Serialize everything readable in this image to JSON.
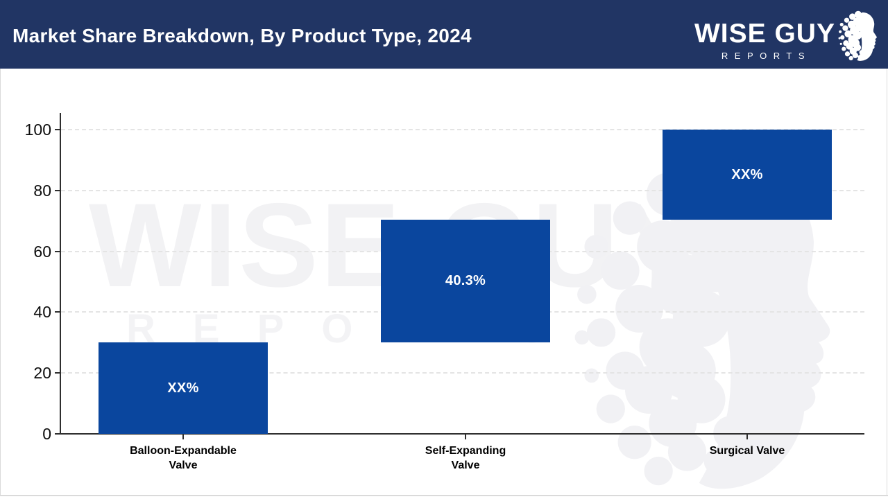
{
  "header": {
    "title": "Market Share Breakdown, By Product Type, 2024",
    "logo": {
      "line1": "WISE GUY",
      "line2": "REPORTS"
    }
  },
  "watermark": {
    "line1": "WISE GUY",
    "line2": "REPORTS"
  },
  "chart_data": {
    "type": "bar",
    "subtype": "floating-stacked-waterfall",
    "title": "Market Share Breakdown, By Product Type, 2024",
    "categories": [
      [
        "Balloon-Expandable",
        "Valve"
      ],
      [
        "Self-Expanding",
        "Valve"
      ],
      [
        "Surgical Valve"
      ]
    ],
    "segments": [
      {
        "category": "Balloon-Expandable Valve",
        "start": 0,
        "end": 30,
        "span": 30,
        "label": "XX%"
      },
      {
        "category": "Self-Expanding Valve",
        "start": 30,
        "end": 70.3,
        "span": 40.3,
        "label": "40.3%"
      },
      {
        "category": "Surgical Valve",
        "start": 70.3,
        "end": 100,
        "span": 29.7,
        "label": "XX%"
      }
    ],
    "y_ticks": [
      0,
      20,
      40,
      60,
      80,
      100
    ],
    "ylim": [
      0,
      106
    ],
    "xlabel": "",
    "ylabel": "",
    "grid": "horizontal-dashed",
    "legend": "none",
    "bar_color": "#0a469e",
    "bar_label_color": "#ffffff"
  },
  "colors": {
    "header_bg": "#213564",
    "bar": "#0a469e",
    "axis": "#2e2e2e",
    "gridline": "#e4e4e4",
    "watermark": "#f2f2f4",
    "frame_border": "#dadada",
    "title_text": "#ffffff"
  }
}
